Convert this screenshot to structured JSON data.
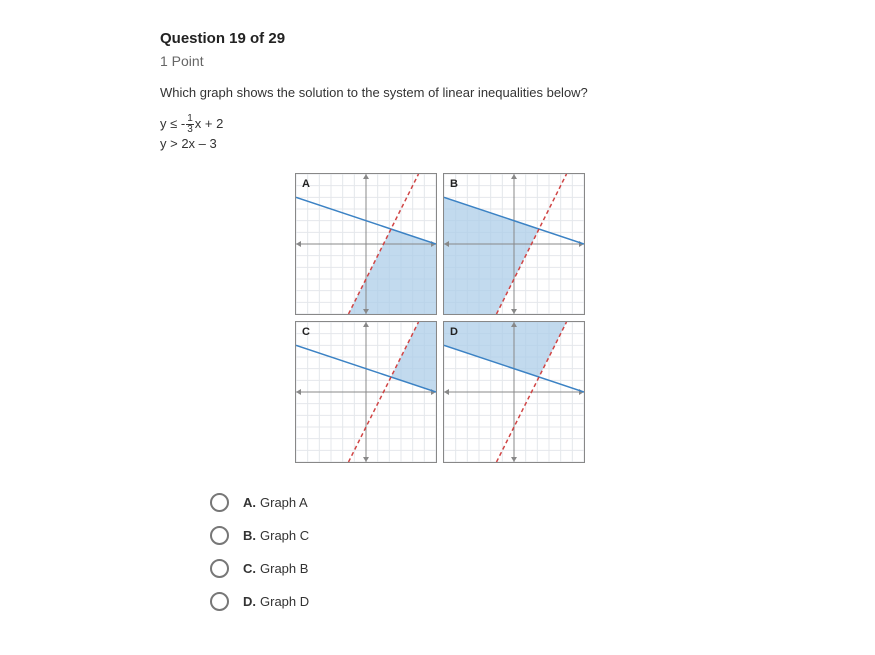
{
  "header": "Question 19 of 29",
  "points": "1 Point",
  "prompt": "Which graph shows the solution to the system of linear inequalities below?",
  "equations": {
    "line1_prefix": "y ≤ -",
    "line1_num": "1",
    "line1_den": "3",
    "line1_suffix": "x + 2",
    "line2": "y > 2x – 3"
  },
  "graphs": {
    "size": 140,
    "cells": 12,
    "grid_color": "#e4e7eb",
    "axis_color": "#888888",
    "solid_line_color": "#3b82c4",
    "dashed_line_color": "#d04545",
    "fill_color": "#aecde8",
    "fill_opacity": 0.75,
    "panels": [
      {
        "label": "A",
        "solid": {
          "m": -0.3333,
          "b": 2
        },
        "dashed": {
          "m": 2,
          "b": -3
        },
        "region": "right_of_dashed_below_solid"
      },
      {
        "label": "B",
        "solid": {
          "m": -0.3333,
          "b": 2
        },
        "dashed": {
          "m": 2,
          "b": -3
        },
        "region": "left_of_dashed_below_solid"
      },
      {
        "label": "C",
        "solid": {
          "m": -0.3333,
          "b": 2
        },
        "dashed": {
          "m": 2,
          "b": -3
        },
        "region": "left_of_dashed_above_solid_lowerright"
      },
      {
        "label": "D",
        "solid": {
          "m": -0.3333,
          "b": 2
        },
        "dashed": {
          "m": 2,
          "b": -3
        },
        "region": "above_solid_left_of_dashed_upper"
      }
    ]
  },
  "answers": [
    {
      "letter": "A.",
      "text": "Graph A"
    },
    {
      "letter": "B.",
      "text": "Graph C"
    },
    {
      "letter": "C.",
      "text": "Graph B"
    },
    {
      "letter": "D.",
      "text": "Graph D"
    }
  ]
}
